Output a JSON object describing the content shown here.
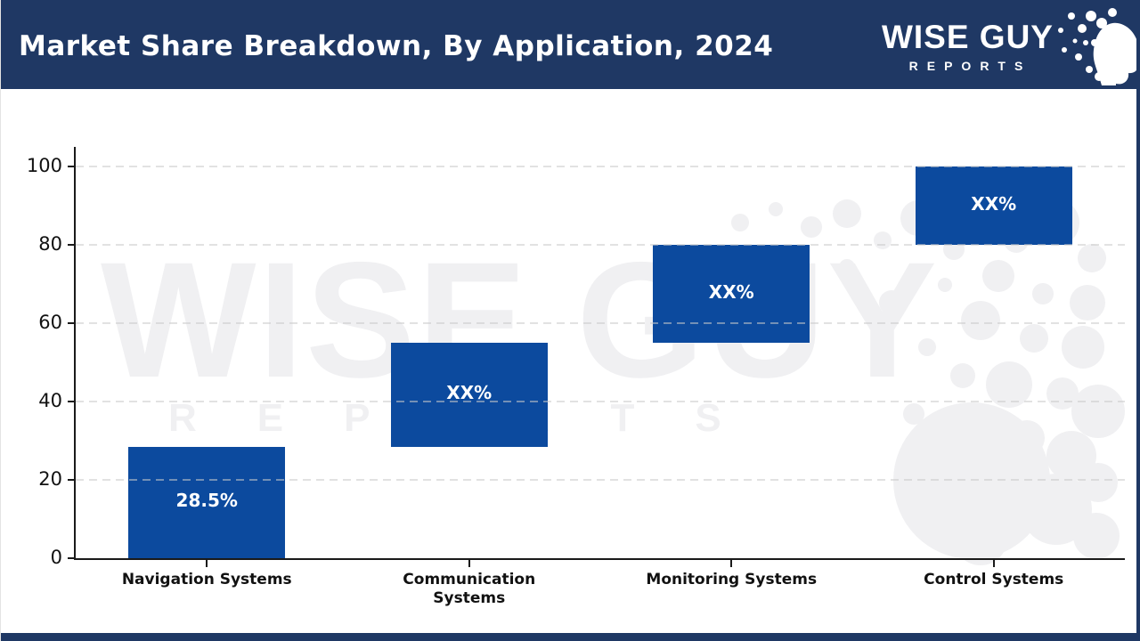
{
  "header": {
    "title": "Market Share Breakdown, By Application, 2024",
    "logo": {
      "line1": "WISE GUY",
      "line2": "REPORTS"
    }
  },
  "watermark": {
    "line1": "WISE GUY",
    "line2": "REPORTS"
  },
  "chart_data": {
    "type": "bar",
    "subtype": "waterfall",
    "title": "Market Share Breakdown, By Application, 2024",
    "categories": [
      "Navigation Systems",
      "Communication Systems",
      "Monitoring Systems",
      "Control Systems"
    ],
    "segments": [
      {
        "category": "Navigation Systems",
        "start": 0,
        "end": 28.5,
        "label": "28.5%"
      },
      {
        "category": "Communication Systems",
        "start": 28.5,
        "end": 55,
        "label": "XX%"
      },
      {
        "category": "Monitoring Systems",
        "start": 55,
        "end": 80,
        "label": "XX%"
      },
      {
        "category": "Control Systems",
        "start": 80,
        "end": 100,
        "label": "XX%"
      }
    ],
    "yticks": [
      0,
      20,
      40,
      60,
      80,
      100
    ],
    "ylim": [
      0,
      105
    ],
    "xlabel": "",
    "ylabel": "",
    "grid": "horizontal-dashed",
    "legend": "none"
  },
  "colors": {
    "header_bg": "#1f3864",
    "bar": "#0c4a9e",
    "value_label": "#ffffff",
    "axis": "#1a1a1a",
    "tick_text": "#111111",
    "grid": "rgba(202,202,202,0.55)",
    "watermark": "#f0f0f2",
    "frame": "#1f3864"
  }
}
